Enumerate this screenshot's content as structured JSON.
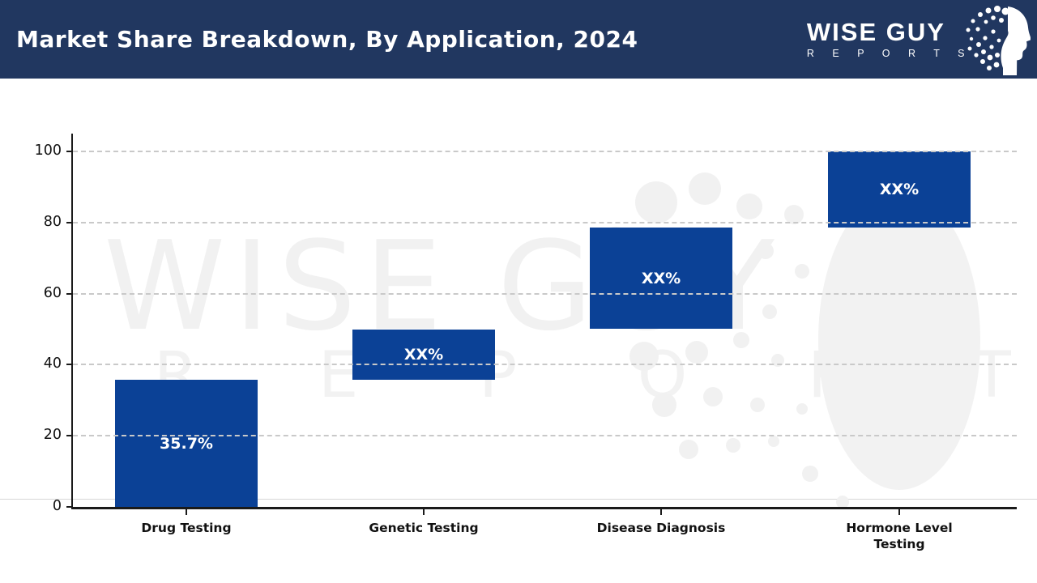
{
  "header": {
    "title": "Market Share Breakdown, By Application, 2024",
    "logo": {
      "line1": "WISE GUY",
      "line2": "R E P O R T S"
    }
  },
  "watermark": {
    "line1": "WISE GUY",
    "line2": "R E P O R T S"
  },
  "colors": {
    "header_bg": "#213760",
    "bar": "#0B4196",
    "bar_label": "#ffffff",
    "gridline": "#c9c9c9",
    "axis": "#1a1a1a",
    "watermark": "#f1f1f1"
  },
  "chart_data": {
    "type": "bar",
    "subtype": "waterfall",
    "title": "Market Share Breakdown, By Application, 2024",
    "xlabel": "",
    "ylabel": "",
    "categories": [
      "Drug Testing",
      "Genetic Testing",
      "Disease Diagnosis",
      "Hormone Level Testing"
    ],
    "bars": [
      {
        "category": "Drug Testing",
        "start": 0,
        "end": 35.7,
        "label": "35.7%"
      },
      {
        "category": "Genetic Testing",
        "start": 35.7,
        "end": 50,
        "label": "XX%"
      },
      {
        "category": "Disease Diagnosis",
        "start": 50,
        "end": 78.5,
        "label": "XX%"
      },
      {
        "category": "Hormone Level Testing",
        "start": 78.5,
        "end": 100,
        "label": "XX%"
      }
    ],
    "ylim": [
      0,
      105
    ],
    "yticks": [
      0,
      20,
      40,
      60,
      80,
      100
    ],
    "grid": "horizontal-dashed",
    "legend": null
  }
}
